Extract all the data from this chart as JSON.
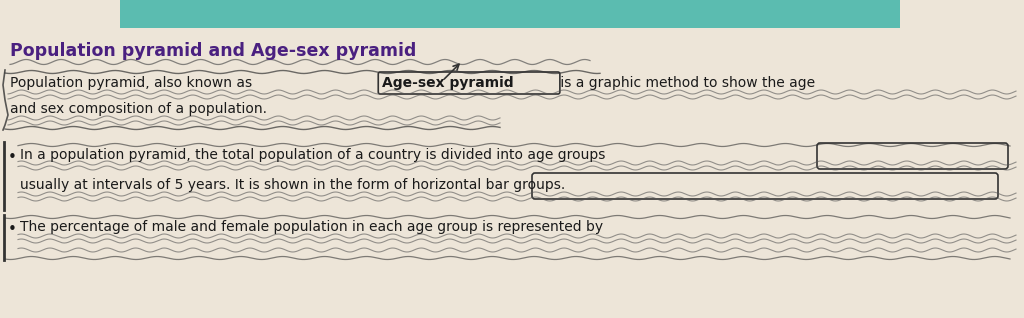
{
  "bg_color": "#ede5d8",
  "top_strip_color": "#5bbcb0",
  "title": "Population pyramid and Age-sex pyramid",
  "title_color": "#4a2080",
  "title_fontsize": 12.5,
  "body_fontsize": 10.0,
  "body_text_color": "#1a1a1a",
  "line1_prefix": "Population pyramid, also known as ",
  "line1_bold": "Age-sex pyramid",
  "line1_suffix": " is a graphic method to show the age",
  "line2": "and sex composition of a population.",
  "bullet1_line1": "In a population pyramid, the total population of a country is divided into age groups",
  "bullet1_line2": "usually at intervals of 5 years. It is shown in the form of horizontal bar groups.",
  "bullet2_line1": "The percentage of male and female population in each age group is represented by"
}
